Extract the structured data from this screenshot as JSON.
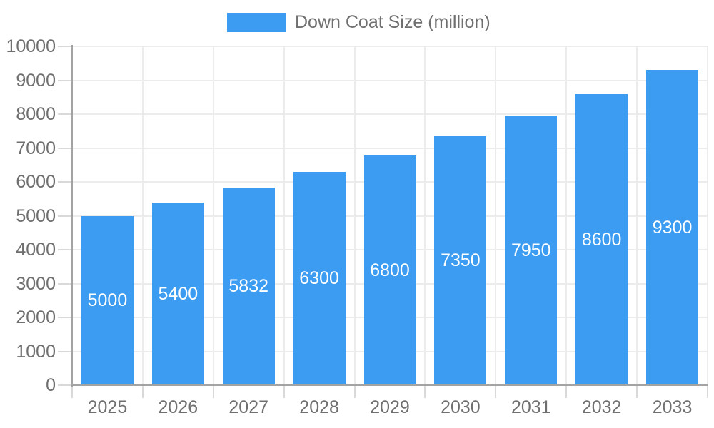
{
  "legend": {
    "label": "Down Coat Size (million)"
  },
  "chart_data": {
    "type": "bar",
    "title": "",
    "categories": [
      "2025",
      "2026",
      "2027",
      "2028",
      "2029",
      "2030",
      "2031",
      "2032",
      "2033"
    ],
    "series": [
      {
        "name": "Down Coat Size (million)",
        "values": [
          5000,
          5400,
          5832,
          6300,
          6800,
          7350,
          7950,
          8600,
          9300
        ]
      }
    ],
    "bar_value_labels": [
      5000,
      5400,
      5832,
      6300,
      6800,
      7350,
      7950,
      8600,
      9300
    ],
    "y_tick_labels": [
      "0",
      "1000",
      "2000",
      "3000",
      "4000",
      "5000",
      "6000",
      "7000",
      "8000",
      "9000",
      "10000"
    ],
    "xlabel": "",
    "ylabel": "",
    "ylim": [
      0,
      10000
    ],
    "y_tick_step": 1000,
    "grid": true,
    "legend_position": "top-center"
  },
  "colors": {
    "bar": "#3b9cf2",
    "bar_label": "#ffffff",
    "axis_line": "#a3a3a3",
    "gridline": "#ececec",
    "tick": "#d9d9d9",
    "text": "#6f6f6f",
    "background": "#ffffff"
  }
}
